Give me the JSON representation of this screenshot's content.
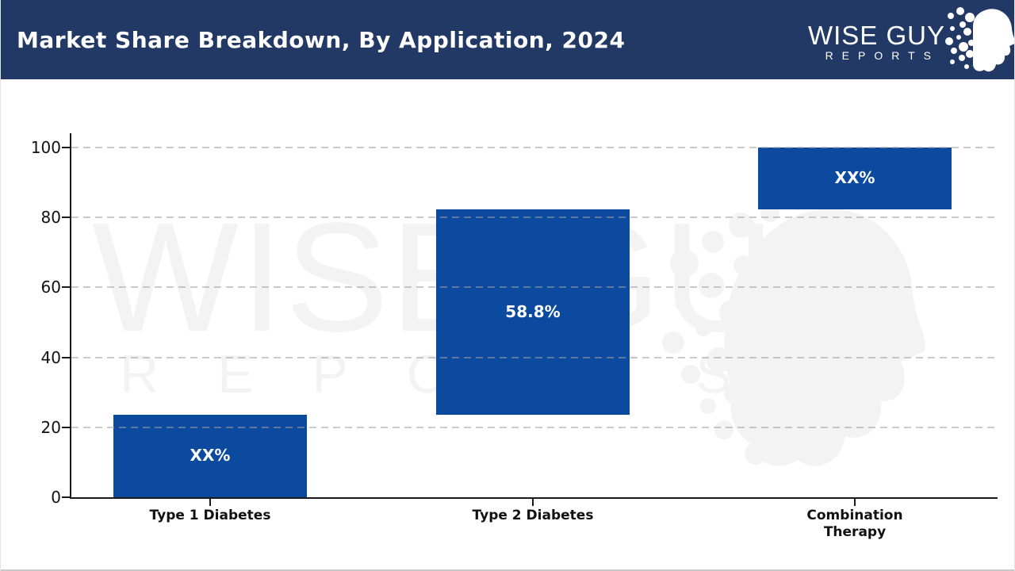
{
  "header": {
    "title": "Market Share Breakdown, By Application, 2024",
    "logo": {
      "name_line": "WISE GUY",
      "sub_line": "REPORTS"
    }
  },
  "watermark": {
    "name_line": "WISE GUY",
    "sub_line": "REPORTS"
  },
  "colors": {
    "header_bg": "#223966",
    "bar": "#0b4a9f",
    "grid": "#d8d8d8",
    "axis": "#1a1a1a",
    "watermark": "#f3f3f3",
    "label_text": "#ffffff"
  },
  "chart_data": {
    "type": "bar",
    "subtype": "waterfall",
    "title": "Market Share Breakdown, By Application, 2024",
    "categories": [
      "Type 1 Diabetes",
      "Type 2 Diabetes",
      "Combination Therapy"
    ],
    "segments": [
      {
        "category": "Type 1 Diabetes",
        "start": 0,
        "end": 23.5,
        "value_label": "XX%"
      },
      {
        "category": "Type 2 Diabetes",
        "start": 23.5,
        "end": 82.3,
        "value_label": "58.8%"
      },
      {
        "category": "Combination Therapy",
        "start": 82.3,
        "end": 100,
        "value_label": "XX%"
      }
    ],
    "xlabel": "",
    "ylabel": "",
    "ylim": [
      0,
      100
    ],
    "yticks": [
      0,
      20,
      40,
      60,
      80,
      100
    ],
    "grid": "horizontal-dashed-over-bars",
    "legend": "none",
    "bar_color": "#0b4a9f"
  }
}
